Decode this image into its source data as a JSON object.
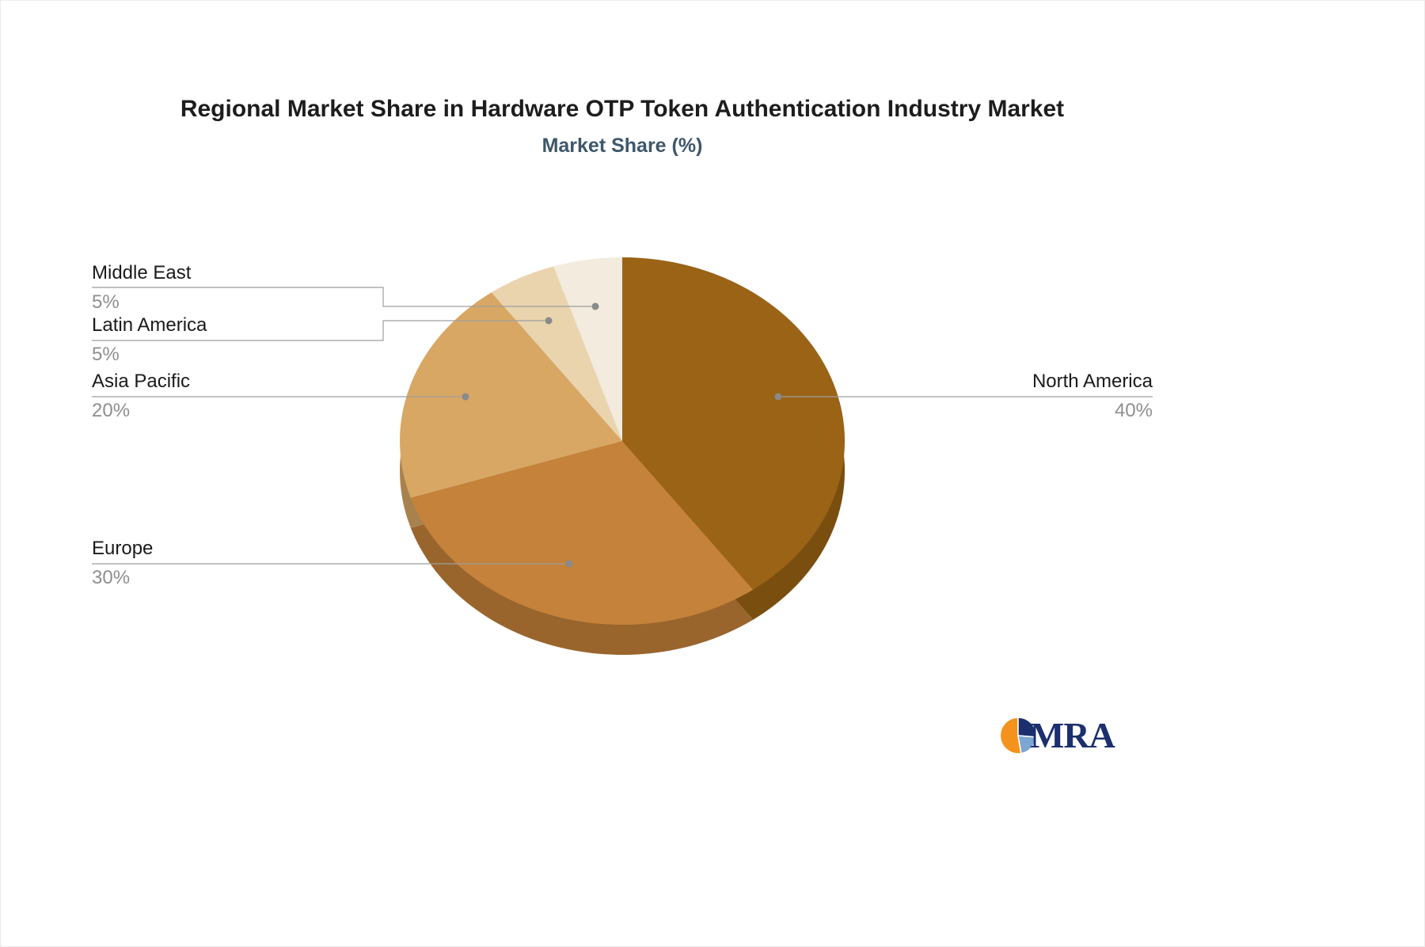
{
  "title": "Regional Market Share in Hardware OTP Token Authentication Industry Market",
  "subtitle": "Market Share (%)",
  "chart_data": {
    "type": "pie",
    "title": "Regional Market Share in Hardware OTP Token Authentication Industry Market",
    "subtitle": "Market Share (%)",
    "unit": "%",
    "labels": [
      "North America",
      "Europe",
      "Asia Pacific",
      "Latin America",
      "Middle East"
    ],
    "values": [
      40,
      30,
      20,
      5,
      5
    ],
    "colors": [
      "#9A6316",
      "#C5823A",
      "#D8A764",
      "#EAD4AE",
      "#F2EBDE"
    ],
    "side_colors": [
      "#7A4E0F",
      "#99652D",
      "#A8824E",
      "#B7A586",
      "#BDB7AC"
    ],
    "start_angle_deg": 0,
    "direction": "clockwise",
    "effect": "3d",
    "legend_position": "callout-labels",
    "grid": false
  },
  "callouts": {
    "middle_east": {
      "label": "Middle East",
      "value": "5%"
    },
    "latin_america": {
      "label": "Latin America",
      "value": "5%"
    },
    "asia_pacific": {
      "label": "Asia Pacific",
      "value": "20%"
    },
    "europe": {
      "label": "Europe",
      "value": "30%"
    },
    "north_america": {
      "label": "North America",
      "value": "40%"
    }
  },
  "logo": {
    "text": "MRA"
  },
  "colors": {
    "leader_line": "#9E9E9E",
    "leader_dot": "#8A8A8A",
    "label_text": "#1A1A1A",
    "value_text": "#8E8E8E",
    "title_text": "#1D1D1D",
    "subtitle_text": "#3D566B",
    "logo_navy": "#1B2F6E",
    "logo_orange": "#F5921E",
    "logo_blue": "#7BA7D0"
  }
}
